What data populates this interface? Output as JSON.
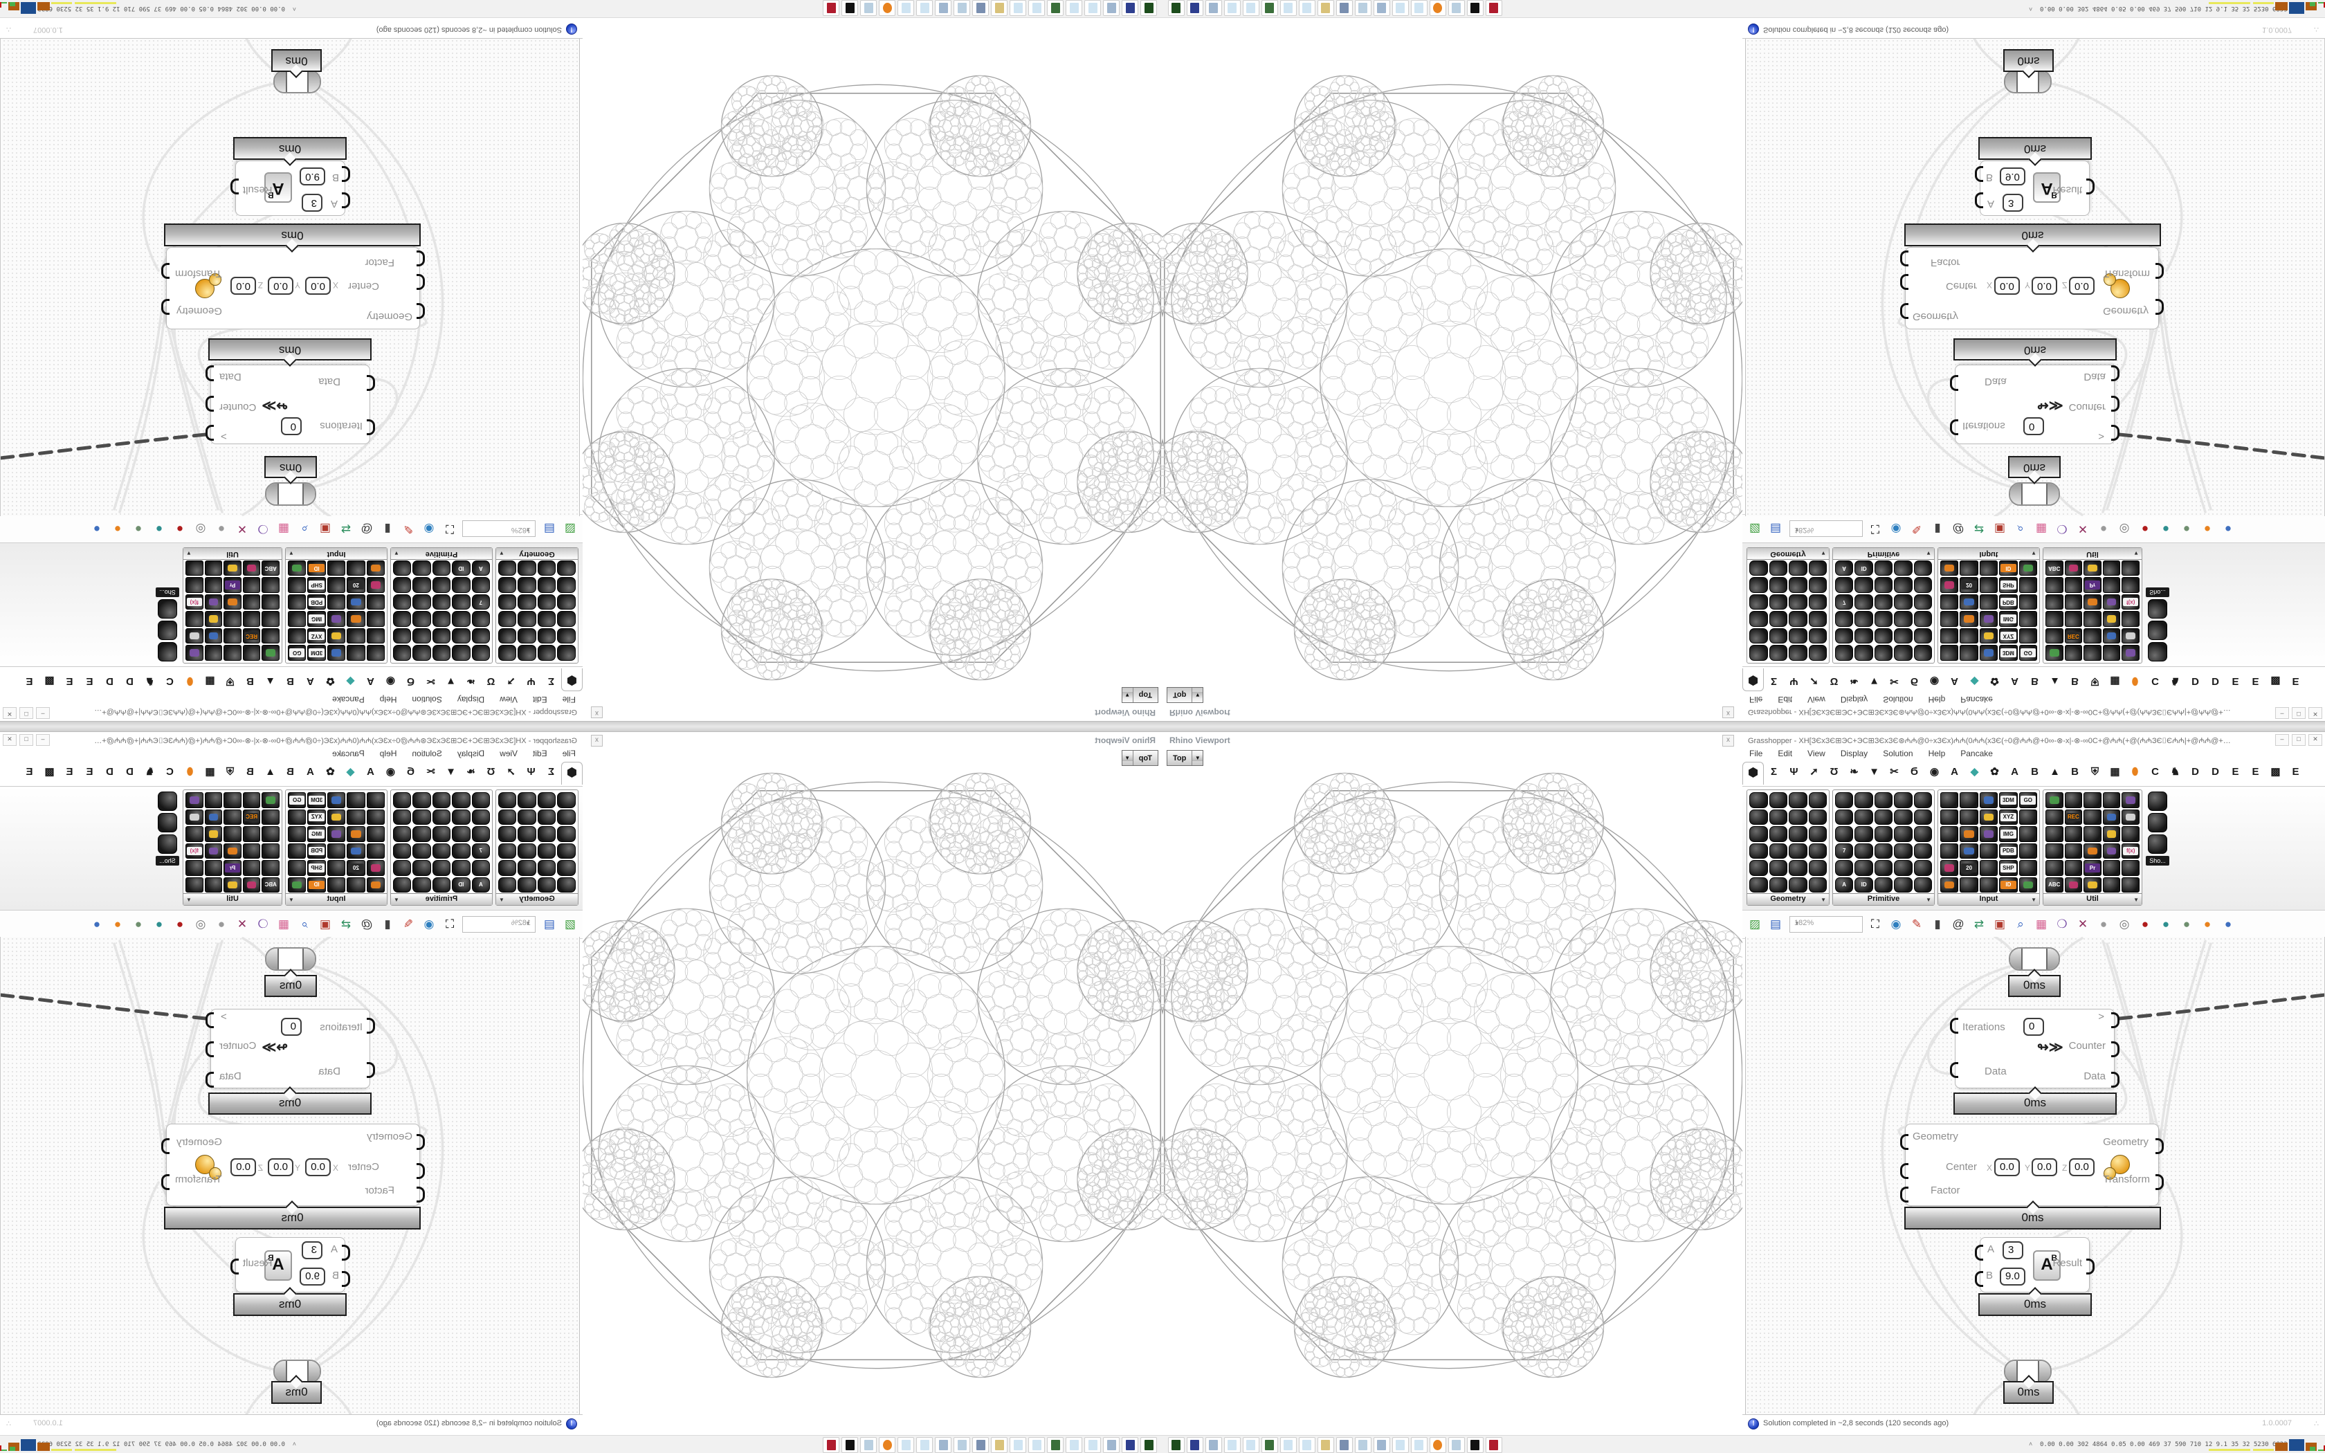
{
  "rhino_viewport": {
    "panel_title": "Rhino Viewport",
    "view_button": "Top",
    "close_label": "x",
    "content_description": "recursive-circle fractal (octagonal apollonian sphere packing, wireframe)"
  },
  "grasshopper": {
    "title": "Grasshopper - XH[ЗЄxЗЄ⊞ЭС+ЭС⊞ЗЄxЗЄ⊛₼₼@0÷xЗЄx)₼₼(0₼₼(xЗЄ(÷0@₼₼@+0∞-⊗-x|-⊗-∞0С+@₼₼(+@(₼₼ЗЄ⌷Є₼₼|+@₼₼@+0∞-⊗-x|-⊗-∞0(+@₼₼(0÷xЗЄx)₼₼0...",
    "window_buttons": {
      "minimize": "–",
      "maximize": "□",
      "close": "✕"
    },
    "menus": [
      "File",
      "Edit",
      "View",
      "Display",
      "Solution",
      "Help",
      "Pancake"
    ],
    "component_tabs": {
      "selected": "params-hexagon",
      "glyphs": [
        "⬢",
        "Σ",
        "Ψ",
        "➚",
        "Ʊ",
        "❧",
        "▼",
        "✂",
        "Ϭ",
        "◉",
        "A",
        "◆",
        "✿",
        "A",
        "B",
        "▲",
        "B",
        "⛨",
        "▦",
        "⬮",
        "C",
        "♞",
        "D",
        "D",
        "E",
        "E",
        "▩",
        "E"
      ]
    },
    "palette": {
      "groups": [
        {
          "label": "Geometry",
          "cols": 4,
          "rows": 6,
          "style": "hex"
        },
        {
          "label": "Primitive",
          "cols": 5,
          "rows": 6,
          "style": "hex"
        },
        {
          "label": "Input",
          "cols": 5,
          "rows": 6,
          "style": "sq"
        },
        {
          "label": "Util",
          "cols": 5,
          "rows": 6,
          "style": "sq"
        }
      ],
      "overflow_label": "Sho...",
      "badges": {
        "Primitive": [
          {
            "r": 3,
            "c": 0,
            "t": "7",
            "bg": "",
            "fg": "#fff"
          },
          {
            "r": 5,
            "c": 0,
            "t": "A",
            "bg": "",
            "fg": "#fff"
          },
          {
            "r": 5,
            "c": 1,
            "t": "ID",
            "bg": "",
            "fg": "#fff"
          }
        ],
        "Input": [
          {
            "r": 0,
            "c": 3,
            "t": "3DM",
            "bg": "#f2f2f2",
            "fg": "#111"
          },
          {
            "r": 0,
            "c": 4,
            "t": "GO",
            "bg": "#f2f2f2",
            "fg": "#111"
          },
          {
            "r": 1,
            "c": 3,
            "t": "XYZ",
            "bg": "#f2f2f2",
            "fg": "#111"
          },
          {
            "r": 2,
            "c": 3,
            "t": "IMG",
            "bg": "#f2f2f2",
            "fg": "#111"
          },
          {
            "r": 3,
            "c": 3,
            "t": "PDB",
            "bg": "#f2f2f2",
            "fg": "#111"
          },
          {
            "r": 4,
            "c": 1,
            "t": "20",
            "bg": "#2a2a2a",
            "fg": "#fff"
          },
          {
            "r": 4,
            "c": 3,
            "t": "SHP",
            "bg": "#f2f2f2",
            "fg": "#111"
          },
          {
            "r": 5,
            "c": 3,
            "t": "ID",
            "bg": "#e8821e",
            "fg": "#fff"
          }
        ],
        "Util": [
          {
            "r": 1,
            "c": 1,
            "t": "REC",
            "bg": "#2a2a2a",
            "fg": "#ff8a00"
          },
          {
            "r": 3,
            "c": 4,
            "t": "f(x)",
            "bg": "#f2f2f2",
            "fg": "#c2366e"
          },
          {
            "r": 4,
            "c": 2,
            "t": "Pr",
            "bg": "#5a2d82",
            "fg": "#fff"
          },
          {
            "r": 5,
            "c": 0,
            "t": "ABC",
            "bg": "",
            "fg": "#fff"
          }
        ]
      }
    },
    "toolbar": {
      "zoom_level": "182%",
      "icons": [
        "open-file",
        "save-file",
        "zoom-extents",
        "preview-eye",
        "sketch-pen",
        "barrel",
        "remote-at",
        "gha-reload",
        "window-layout",
        "search-s",
        "package",
        "balloon",
        "cross-wires",
        "sphere-gray",
        "sphere-rings",
        "sphere-red",
        "preview-teal",
        "preview-green",
        "preview-orange",
        "preview-blue"
      ]
    },
    "nodes": {
      "loop": {
        "in_iterations": "Iterations",
        "iterations_value": "0",
        "in_data": "Data",
        "out_gt": ">",
        "out_counter": "Counter",
        "out_data": "Data"
      },
      "scale": {
        "in_geometry": "Geometry",
        "in_center": "Center",
        "in_factor": "Factor",
        "axis_x": "X",
        "axis_y": "Y",
        "axis_z": "Z",
        "center_x": "0.0",
        "center_y": "0.0",
        "center_z": "0.0",
        "out_geometry": "Geometry",
        "out_transform": "Transform"
      },
      "power": {
        "a_label": "A",
        "a_value": "3",
        "b_label": "B",
        "b_value": "9.0",
        "icon": "A^B",
        "result": "Result"
      }
    },
    "profiler_ms": "0ms",
    "status_message": "Solution completed in ~2,8 seconds (120 seconds ago)",
    "version": "1.0.0007"
  },
  "taskbar": {
    "tray_text": "0.00 0.00 302 4864 0.05 0.00 469 37 590 710 12 9.1 35 32 5230 6823",
    "icons": [
      "terminal",
      "emulator-64",
      "documents",
      "notepad",
      "notepad",
      "monitor-chart",
      "notepad",
      "notepad",
      "folder",
      "media-player",
      "calculator",
      "documents",
      "notepad",
      "notepad",
      "firefox",
      "calculator",
      "video-black",
      "ruby-red"
    ]
  },
  "composition": {
    "note": "screen tiled 2x2; top-left rotated 180deg, top-right flipped vertically, bottom-left flipped horizontally, bottom-right original"
  }
}
